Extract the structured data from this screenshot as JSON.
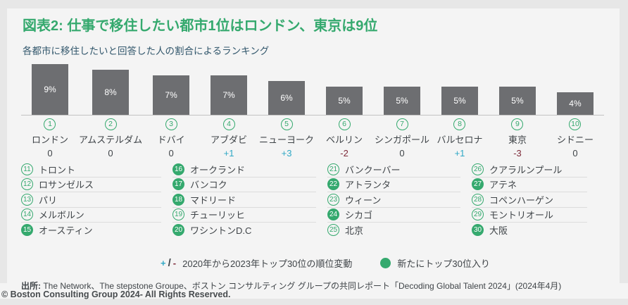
{
  "page": {
    "title": "図表2: 仕事で移住したい都市1位はロンドン、東京は9位",
    "subtitle": "各都市に移住したいと回答した人の割合によるランキング"
  },
  "chart_data": {
    "type": "bar",
    "title": "図表2: 仕事で移住したい都市1位はロンドン、東京は9位",
    "subtitle": "各都市に移住したいと回答した人の割合によるランキング",
    "unit": "%",
    "ylim": [
      0,
      10
    ],
    "grid": false,
    "categories": [
      "ロンドン",
      "アムステルダム",
      "ドバイ",
      "アブダビ",
      "ニューヨーク",
      "ベルリン",
      "シンガポール",
      "バルセロナ",
      "東京",
      "シドニー"
    ],
    "values": [
      9,
      8,
      7,
      7,
      6,
      5,
      5,
      5,
      5,
      4
    ],
    "value_labels": [
      "9%",
      "8%",
      "7%",
      "7%",
      "6%",
      "5%",
      "5%",
      "5%",
      "5%",
      "4%"
    ],
    "ranks": [
      "1",
      "2",
      "3",
      "4",
      "5",
      "6",
      "7",
      "8",
      "9",
      "10"
    ],
    "rank_changes": [
      "0",
      "0",
      "0",
      "+1",
      "+3",
      "-2",
      "0",
      "+1",
      "-3",
      "0"
    ]
  },
  "ranking_list": {
    "items": [
      {
        "rank": "11",
        "city": "トロント",
        "new_entry": false
      },
      {
        "rank": "12",
        "city": "ロサンゼルス",
        "new_entry": false
      },
      {
        "rank": "13",
        "city": "パリ",
        "new_entry": false
      },
      {
        "rank": "14",
        "city": "メルボルン",
        "new_entry": false
      },
      {
        "rank": "15",
        "city": "オースティン",
        "new_entry": true
      },
      {
        "rank": "16",
        "city": "オークランド",
        "new_entry": true
      },
      {
        "rank": "17",
        "city": "バンコク",
        "new_entry": true
      },
      {
        "rank": "18",
        "city": "マドリード",
        "new_entry": true
      },
      {
        "rank": "19",
        "city": "チューリッヒ",
        "new_entry": false
      },
      {
        "rank": "20",
        "city": "ワシントンD.C",
        "new_entry": true
      },
      {
        "rank": "21",
        "city": "バンクーバー",
        "new_entry": false
      },
      {
        "rank": "22",
        "city": "アトランタ",
        "new_entry": true
      },
      {
        "rank": "23",
        "city": "ウィーン",
        "new_entry": false
      },
      {
        "rank": "24",
        "city": "シカゴ",
        "new_entry": true
      },
      {
        "rank": "25",
        "city": "北京",
        "new_entry": false
      },
      {
        "rank": "26",
        "city": "クアラルンプール",
        "new_entry": false
      },
      {
        "rank": "27",
        "city": "アテネ",
        "new_entry": true
      },
      {
        "rank": "28",
        "city": "コペンハーゲン",
        "new_entry": false
      },
      {
        "rank": "29",
        "city": "モントリオール",
        "new_entry": false
      },
      {
        "rank": "30",
        "city": "大阪",
        "new_entry": true
      }
    ]
  },
  "legend": {
    "plus": "+",
    "slash": "/",
    "minus": "-",
    "change_label": "2020年から2023年トップ30位の順位変動",
    "new_entry_label": "新たにトップ30位入り"
  },
  "footer": {
    "source_prefix": "出所:",
    "source_text": " The Network、The stepstone Groupe、ボストン コンサルティング グループの共同レポート「Decoding Global Talent 2024」(2024年4月)",
    "copyright": "© Boston Consulting Group 2024- All Rights Reserved."
  },
  "colors": {
    "accent_green": "#35a96e",
    "positive_change": "#2fa8c5",
    "negative_change": "#7e2b3a",
    "bar": "#6d6e71",
    "subtitle": "#31566b",
    "text": "#3f4448"
  }
}
